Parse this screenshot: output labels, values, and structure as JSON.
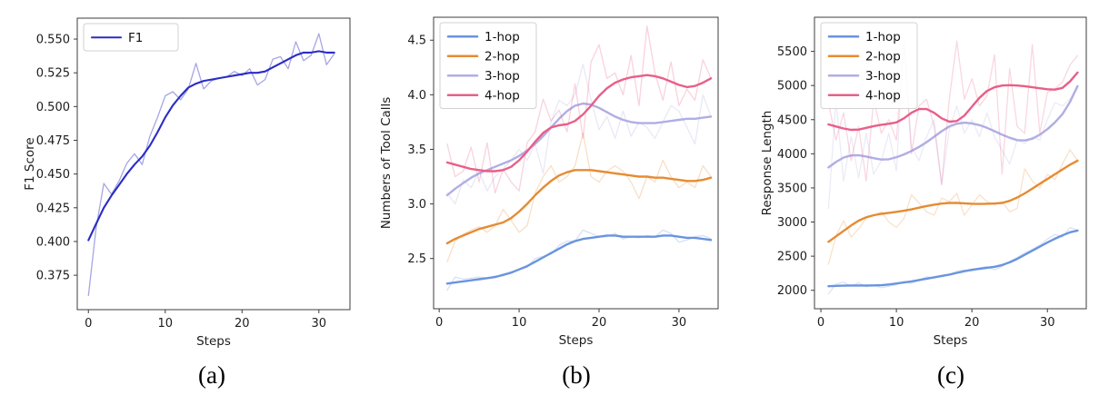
{
  "figure": {
    "background": "#ffffff",
    "spine_color": "#3c3c3c",
    "tick_label_color": "#1c1c1c",
    "legend_border_color": "#d2d2d2",
    "legend_bg_color": "#ffffff"
  },
  "chart_data": [
    {
      "type": "line",
      "caption": "(a)",
      "xlabel": "Steps",
      "ylabel": "F1 Score",
      "xlim": [
        -1.45,
        34.05
      ],
      "ylim": [
        0.3495,
        0.5655
      ],
      "xticks": [
        0,
        10,
        20,
        30
      ],
      "xtick_labels": [
        "0",
        "10",
        "20",
        "30"
      ],
      "yticks": [
        0.375,
        0.4,
        0.425,
        0.45,
        0.475,
        0.5,
        0.525,
        0.55
      ],
      "ytick_labels": [
        "0.375",
        "0.400",
        "0.425",
        "0.450",
        "0.475",
        "0.500",
        "0.525",
        "0.550"
      ],
      "grid": false,
      "legend_position": "upper-left",
      "x_start": 0,
      "raw_opacity": 0.42,
      "series": [
        {
          "name": "F1",
          "color": "#2a2cc4",
          "raw": [
            0.36,
            0.41,
            0.443,
            0.435,
            0.445,
            0.458,
            0.465,
            0.457,
            0.478,
            0.492,
            0.508,
            0.511,
            0.505,
            0.513,
            0.532,
            0.513,
            0.519,
            0.521,
            0.522,
            0.526,
            0.523,
            0.528,
            0.516,
            0.52,
            0.535,
            0.537,
            0.528,
            0.548,
            0.534,
            0.538,
            0.554,
            0.531,
            0.539
          ],
          "smooth": [
            0.401,
            0.413,
            0.425,
            0.434,
            0.442,
            0.45,
            0.457,
            0.463,
            0.471,
            0.481,
            0.492,
            0.501,
            0.508,
            0.514,
            0.517,
            0.519,
            0.52,
            0.521,
            0.522,
            0.523,
            0.524,
            0.525,
            0.525,
            0.526,
            0.529,
            0.532,
            0.535,
            0.538,
            0.54,
            0.54,
            0.541,
            0.54,
            0.54
          ]
        }
      ]
    },
    {
      "type": "line",
      "caption": "(b)",
      "xlabel": "Steps",
      "ylabel": "Numbers of Tool Calls",
      "xlim": [
        -0.7,
        34.9
      ],
      "ylim": [
        2.04,
        4.71
      ],
      "xticks": [
        0,
        10,
        20,
        30
      ],
      "xtick_labels": [
        "0",
        "10",
        "20",
        "30"
      ],
      "yticks": [
        2.5,
        3.0,
        3.5,
        4.0,
        4.5
      ],
      "ytick_labels": [
        "2.5",
        "3.0",
        "3.5",
        "4.0",
        "4.5"
      ],
      "grid": false,
      "legend_position": "upper-left",
      "x_start": 1,
      "raw_opacity": 0.28,
      "series": [
        {
          "name": "1-hop",
          "color": "#6a94df",
          "raw": [
            2.21,
            2.33,
            2.31,
            2.32,
            2.33,
            2.32,
            2.34,
            2.34,
            2.38,
            2.4,
            2.42,
            2.5,
            2.52,
            2.54,
            2.62,
            2.66,
            2.66,
            2.76,
            2.73,
            2.7,
            2.7,
            2.73,
            2.68,
            2.7,
            2.69,
            2.71,
            2.7,
            2.76,
            2.73,
            2.65,
            2.67,
            2.7,
            2.71,
            2.68
          ],
          "smooth": [
            2.27,
            2.28,
            2.29,
            2.3,
            2.31,
            2.32,
            2.33,
            2.35,
            2.37,
            2.4,
            2.43,
            2.47,
            2.51,
            2.55,
            2.59,
            2.63,
            2.66,
            2.68,
            2.69,
            2.7,
            2.71,
            2.71,
            2.7,
            2.7,
            2.7,
            2.7,
            2.7,
            2.71,
            2.71,
            2.7,
            2.69,
            2.69,
            2.68,
            2.67
          ]
        },
        {
          "name": "2-hop",
          "color": "#e68b33",
          "raw": [
            2.47,
            2.66,
            2.72,
            2.76,
            2.79,
            2.74,
            2.8,
            2.95,
            2.85,
            2.74,
            2.8,
            3.1,
            3.25,
            3.35,
            3.2,
            3.25,
            3.35,
            3.65,
            3.25,
            3.2,
            3.3,
            3.35,
            3.3,
            3.2,
            3.05,
            3.25,
            3.2,
            3.4,
            3.25,
            3.15,
            3.2,
            3.15,
            3.35,
            3.25
          ],
          "smooth": [
            2.64,
            2.68,
            2.71,
            2.74,
            2.77,
            2.79,
            2.81,
            2.83,
            2.87,
            2.93,
            3.0,
            3.08,
            3.15,
            3.21,
            3.26,
            3.29,
            3.31,
            3.31,
            3.31,
            3.3,
            3.29,
            3.28,
            3.27,
            3.26,
            3.25,
            3.25,
            3.24,
            3.24,
            3.23,
            3.22,
            3.21,
            3.21,
            3.22,
            3.24
          ]
        },
        {
          "name": "3-hop",
          "color": "#b0aee4",
          "raw": [
            3.1,
            3.0,
            3.22,
            3.15,
            3.3,
            3.12,
            3.25,
            3.32,
            3.4,
            3.5,
            3.4,
            3.55,
            3.28,
            3.75,
            3.95,
            3.9,
            4.0,
            4.28,
            3.95,
            3.68,
            3.8,
            3.6,
            3.85,
            3.62,
            3.75,
            3.7,
            3.6,
            3.75,
            3.9,
            3.85,
            3.7,
            3.55,
            4.0,
            3.8
          ],
          "smooth": [
            3.08,
            3.14,
            3.19,
            3.24,
            3.28,
            3.31,
            3.34,
            3.37,
            3.4,
            3.44,
            3.49,
            3.55,
            3.62,
            3.7,
            3.78,
            3.85,
            3.9,
            3.92,
            3.91,
            3.88,
            3.84,
            3.8,
            3.77,
            3.75,
            3.74,
            3.74,
            3.74,
            3.75,
            3.76,
            3.77,
            3.78,
            3.78,
            3.79,
            3.8
          ]
        },
        {
          "name": "4-hop",
          "color": "#e85f88",
          "raw": [
            3.55,
            3.25,
            3.3,
            3.52,
            3.2,
            3.56,
            3.1,
            3.32,
            3.2,
            3.12,
            3.56,
            3.66,
            3.96,
            3.76,
            3.86,
            3.66,
            4.1,
            3.6,
            4.3,
            4.46,
            4.15,
            4.2,
            4.0,
            4.36,
            3.9,
            4.63,
            4.2,
            3.95,
            4.3,
            3.9,
            4.05,
            3.95,
            4.32,
            4.15
          ],
          "smooth": [
            3.38,
            3.36,
            3.34,
            3.32,
            3.31,
            3.3,
            3.3,
            3.31,
            3.34,
            3.4,
            3.48,
            3.57,
            3.65,
            3.7,
            3.72,
            3.73,
            3.76,
            3.82,
            3.9,
            3.99,
            4.06,
            4.11,
            4.14,
            4.16,
            4.17,
            4.18,
            4.17,
            4.15,
            4.12,
            4.09,
            4.07,
            4.08,
            4.11,
            4.15
          ]
        }
      ]
    },
    {
      "type": "line",
      "caption": "(c)",
      "xlabel": "Steps",
      "ylabel": "Response Length",
      "xlim": [
        -0.85,
        35.15
      ],
      "ylim": [
        1730,
        6000
      ],
      "xticks": [
        0,
        10,
        20,
        30
      ],
      "xtick_labels": [
        "0",
        "10",
        "20",
        "30"
      ],
      "yticks": [
        2000,
        2500,
        3000,
        3500,
        4000,
        4500,
        5000,
        5500
      ],
      "ytick_labels": [
        "2000",
        "2500",
        "3000",
        "3500",
        "4000",
        "4500",
        "5000",
        "5500"
      ],
      "grid": false,
      "legend_position": "upper-left",
      "x_start": 1,
      "raw_opacity": 0.25,
      "series": [
        {
          "name": "1-hop",
          "color": "#6a94df",
          "raw": [
            1950,
            2090,
            2120,
            2060,
            2110,
            2050,
            2070,
            2040,
            2060,
            2080,
            2130,
            2100,
            2150,
            2200,
            2180,
            2220,
            2230,
            2280,
            2300,
            2280,
            2330,
            2350,
            2300,
            2350,
            2420,
            2480,
            2550,
            2600,
            2660,
            2750,
            2820,
            2780,
            2920,
            2880
          ],
          "smooth": [
            2060,
            2065,
            2068,
            2070,
            2070,
            2070,
            2072,
            2075,
            2085,
            2100,
            2115,
            2130,
            2150,
            2170,
            2190,
            2210,
            2230,
            2255,
            2280,
            2300,
            2315,
            2330,
            2345,
            2370,
            2410,
            2460,
            2520,
            2580,
            2640,
            2700,
            2755,
            2805,
            2850,
            2875
          ]
        },
        {
          "name": "2-hop",
          "color": "#e68b33",
          "raw": [
            2380,
            2800,
            3020,
            2780,
            2900,
            3060,
            3100,
            3150,
            3000,
            2920,
            3050,
            3400,
            3280,
            3150,
            3100,
            3350,
            3300,
            3420,
            3100,
            3250,
            3400,
            3300,
            3250,
            3300,
            3150,
            3200,
            3780,
            3600,
            3500,
            3700,
            3620,
            3850,
            4060,
            3900
          ],
          "smooth": [
            2710,
            2790,
            2870,
            2950,
            3020,
            3070,
            3100,
            3120,
            3135,
            3150,
            3165,
            3185,
            3210,
            3235,
            3255,
            3270,
            3280,
            3280,
            3275,
            3268,
            3265,
            3268,
            3272,
            3280,
            3310,
            3360,
            3420,
            3490,
            3560,
            3630,
            3700,
            3770,
            3840,
            3900
          ]
        },
        {
          "name": "3-hop",
          "color": "#b0aee4",
          "raw": [
            3200,
            4780,
            3600,
            4250,
            3650,
            4300,
            3700,
            3900,
            4300,
            3750,
            5680,
            4100,
            3900,
            4250,
            4500,
            3550,
            4350,
            4700,
            4300,
            4500,
            4250,
            4600,
            4250,
            4050,
            3850,
            4200,
            4150,
            4250,
            4200,
            4500,
            4750,
            4700,
            4800,
            5000
          ],
          "smooth": [
            3800,
            3880,
            3945,
            3975,
            3980,
            3960,
            3935,
            3915,
            3920,
            3950,
            3990,
            4040,
            4100,
            4170,
            4250,
            4330,
            4400,
            4440,
            4455,
            4445,
            4420,
            4380,
            4330,
            4280,
            4235,
            4200,
            4195,
            4220,
            4280,
            4360,
            4460,
            4580,
            4760,
            4990
          ]
        },
        {
          "name": "4-hop",
          "color": "#e85f88",
          "raw": [
            4750,
            4200,
            4600,
            3900,
            4400,
            3600,
            4800,
            4300,
            4500,
            4200,
            5600,
            4000,
            4700,
            4800,
            4400,
            3550,
            4800,
            5650,
            4800,
            5100,
            4700,
            4850,
            5450,
            3700,
            5250,
            4400,
            4300,
            5600,
            4300,
            4900,
            4950,
            5050,
            5300,
            5440
          ],
          "smooth": [
            4430,
            4400,
            4370,
            4350,
            4355,
            4380,
            4405,
            4425,
            4440,
            4460,
            4520,
            4600,
            4655,
            4655,
            4600,
            4520,
            4470,
            4480,
            4560,
            4690,
            4820,
            4920,
            4975,
            5000,
            5005,
            5000,
            4990,
            4975,
            4960,
            4945,
            4940,
            4965,
            5060,
            5190
          ]
        }
      ]
    }
  ]
}
